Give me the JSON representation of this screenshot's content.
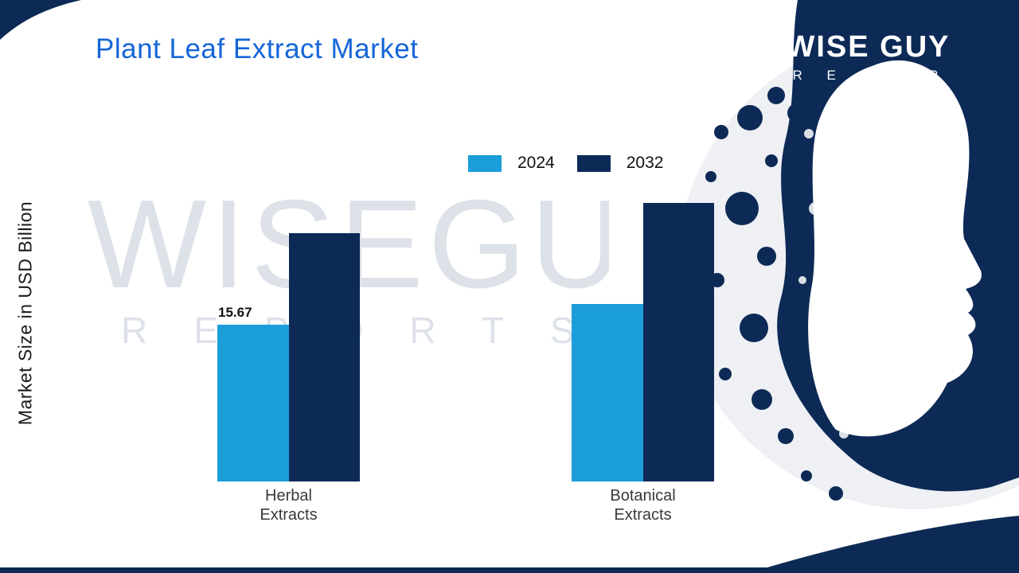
{
  "page": {
    "title": "Plant Leaf Extract Market"
  },
  "logo": {
    "line1": "WISE GUY",
    "line2": "R E P O R T S"
  },
  "watermark": {
    "line1": "WISEGUY",
    "line2": "REPORTS"
  },
  "colors": {
    "title_blue": "#1565d8",
    "series_2024": "#1b9dd9",
    "series_2032": "#0d2a56",
    "navy_decor": "#0d2a56",
    "watermark_gray": "#dde1e8",
    "head_gray": "#eef0f4"
  },
  "chart_data": {
    "type": "bar",
    "title": "Plant Leaf Extract Market",
    "xlabel": "",
    "ylabel": "Market Size in USD Billion",
    "categories": [
      "Herbal Extracts",
      "Botanical Extracts"
    ],
    "series": [
      {
        "name": "2024",
        "color": "#1b9dd9",
        "values": [
          15.67,
          17.73
        ]
      },
      {
        "name": "2032",
        "color": "#0d2a56",
        "values": [
          24.8,
          27.84
        ]
      }
    ],
    "value_labels": [
      {
        "series": "2024",
        "category": "Herbal Extracts",
        "text": "15.67"
      }
    ],
    "ylim": [
      0,
      30
    ],
    "grid": false,
    "legend_position": "top-center"
  }
}
